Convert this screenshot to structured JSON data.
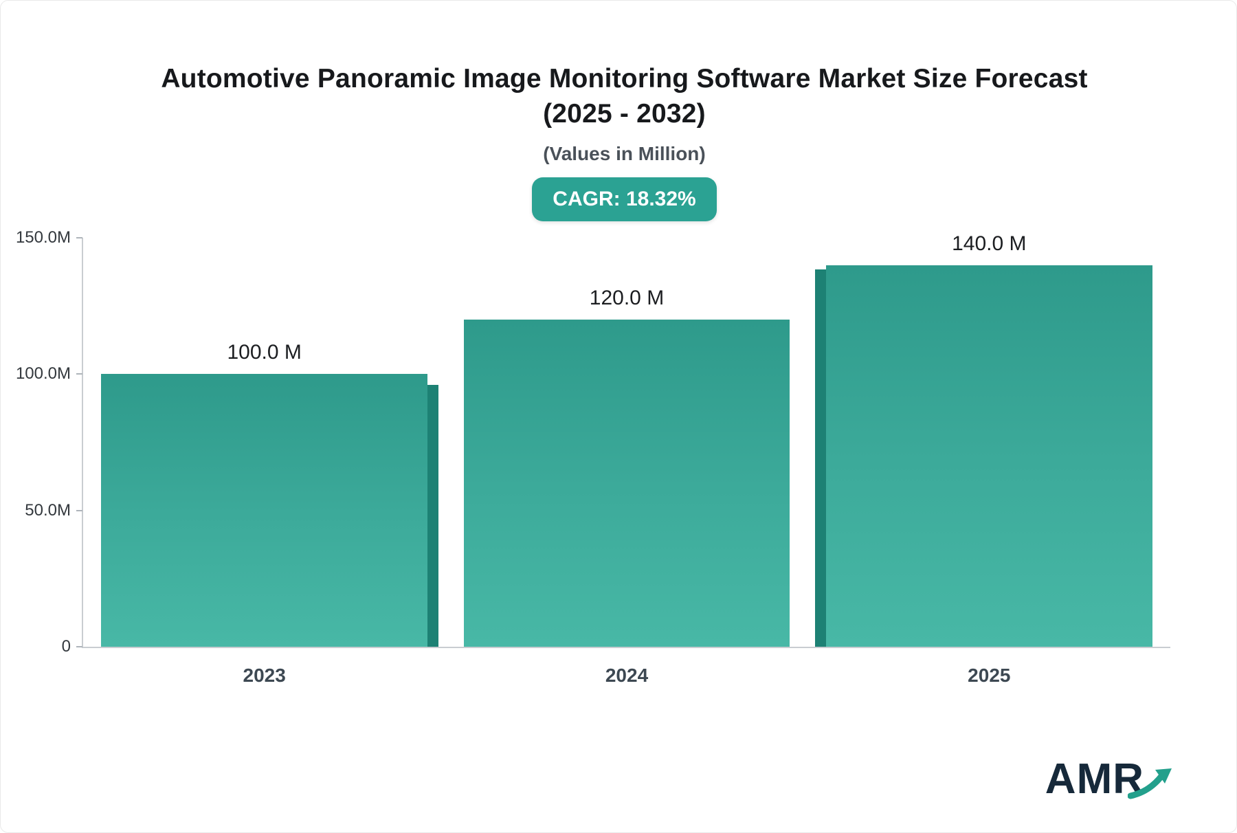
{
  "title": "Automotive Panoramic Image Monitoring Software Market Size Forecast (2025 - 2032)",
  "subtitle": "(Values in Million)",
  "cagr_badge": "CAGR: 18.32%",
  "logo_text": "AMR",
  "colors": {
    "accent": "#2ba293",
    "bar_top": "#2e9a8b",
    "bar_bottom": "#48b8a6",
    "bar_side": "#1d8174",
    "axis": "#c9cdd1",
    "title_text": "#17191c",
    "subtitle_text": "#4a5159",
    "logo_text": "#16293a"
  },
  "chart_data": {
    "type": "bar",
    "title": "Automotive Panoramic Image Monitoring Software Market Size Forecast (2025 - 2032)",
    "subtitle": "(Values in Million)",
    "categories": [
      "2023",
      "2024",
      "2025"
    ],
    "values": [
      100,
      120,
      140
    ],
    "value_labels": [
      "100.0 M",
      "120.0 M",
      "140.0 M"
    ],
    "unit": "Million",
    "ylim": [
      0,
      150
    ],
    "yticks": [
      {
        "value": 150,
        "label": "150.0M"
      },
      {
        "value": 100,
        "label": "100.0M"
      },
      {
        "value": 50,
        "label": "50.0M"
      },
      {
        "value": 0,
        "label": "0"
      }
    ],
    "grid": false,
    "legend": "none",
    "bar_3d_edges": [
      "right",
      "none",
      "left"
    ],
    "cagr": "18.32%"
  }
}
